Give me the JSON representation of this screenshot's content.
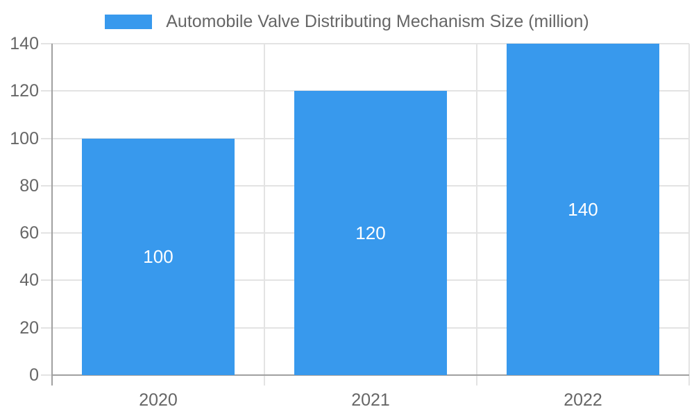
{
  "legend": {
    "label": "Automobile Valve Distributing Mechanism Size (million)"
  },
  "chart_data": {
    "type": "bar",
    "title": "Automobile Valve Distributing Mechanism Size (million)",
    "categories": [
      "2020",
      "2021",
      "2022"
    ],
    "values": [
      100,
      120,
      140
    ],
    "series": [
      {
        "name": "Automobile Valve Distributing Mechanism Size (million)",
        "values": [
          100,
          120,
          140
        ]
      }
    ],
    "data_labels": [
      "100",
      "120",
      "140"
    ],
    "xlabel": "",
    "ylabel": "",
    "ylim": [
      0,
      140
    ],
    "yticks": [
      0,
      20,
      40,
      60,
      80,
      100,
      120,
      140
    ],
    "grid": true,
    "legend_position": "top-center",
    "colors": {
      "bar": "#3899ED",
      "grid": "#E3E3E3",
      "axis": "#A0A0A0",
      "tick_label": "#666666",
      "data_label": "#FFFFFF",
      "background": "#FFFFFF"
    }
  }
}
